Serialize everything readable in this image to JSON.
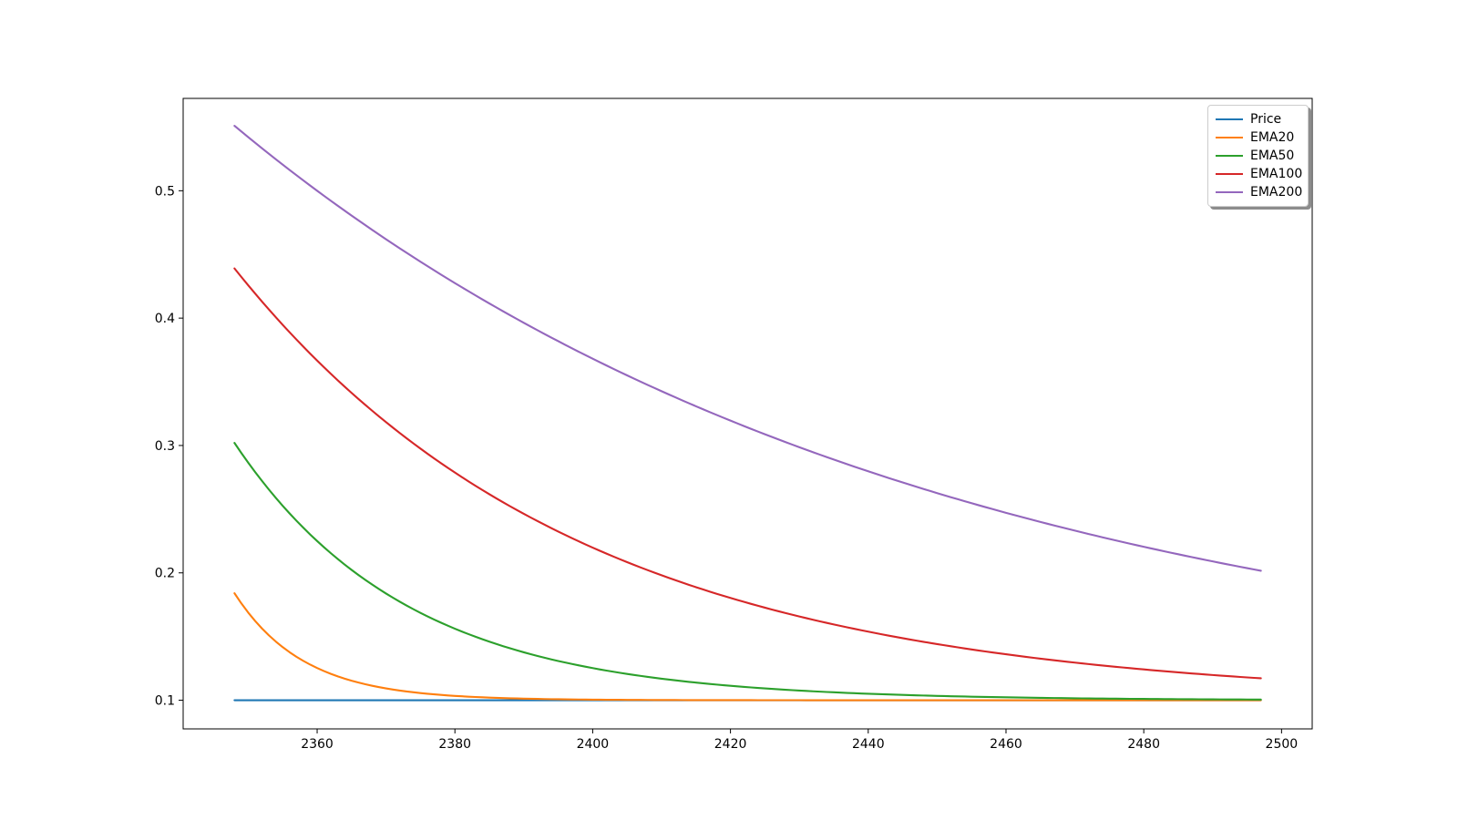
{
  "figure": {
    "background": "#ffffff"
  },
  "chart_data": {
    "type": "line",
    "title": "",
    "xlabel": "",
    "ylabel": "",
    "grid": false,
    "legend_position": "upper right",
    "xlim": [
      2340.55,
      2504.45
    ],
    "ylim": [
      0.0775,
      0.5725
    ],
    "x_ticks": [
      2360,
      2380,
      2400,
      2420,
      2440,
      2460,
      2480,
      2500
    ],
    "x_tick_labels": [
      "2360",
      "2380",
      "2400",
      "2420",
      "2440",
      "2460",
      "2480",
      "2500"
    ],
    "y_ticks": [
      0.1,
      0.2,
      0.3,
      0.4,
      0.5
    ],
    "y_tick_labels": [
      "0.1",
      "0.2",
      "0.3",
      "0.4",
      "0.5"
    ],
    "x_start": 2348,
    "x_end": 2497,
    "x_step": 1,
    "n_points": 150,
    "series": [
      {
        "name": "Price",
        "color": "#1f77b4",
        "model": {
          "base": 0.1,
          "amplitude": 0.0,
          "decay": 1.0
        },
        "samples_x": [
          2348,
          2358,
          2368,
          2378,
          2388,
          2398,
          2408,
          2418,
          2428,
          2438,
          2448,
          2458,
          2468,
          2478,
          2488,
          2497
        ],
        "samples_y": [
          0.1,
          0.1,
          0.1,
          0.1,
          0.1,
          0.1,
          0.1,
          0.1,
          0.1,
          0.1,
          0.1,
          0.1,
          0.1,
          0.1,
          0.1,
          0.1
        ]
      },
      {
        "name": "EMA20",
        "color": "#ff7f0e",
        "model": {
          "base": 0.1,
          "amplitude": 0.084,
          "decay": 0.9047619
        },
        "samples_x": [
          2348,
          2358,
          2368,
          2378,
          2388,
          2398,
          2408,
          2418,
          2428,
          2438,
          2448,
          2458,
          2468,
          2478,
          2488,
          2497
        ],
        "samples_y": [
          0.184,
          0.1309,
          0.1114,
          0.1042,
          0.1015,
          0.1006,
          0.1002,
          0.1001,
          0.1,
          0.1,
          0.1,
          0.1,
          0.1,
          0.1,
          0.1,
          0.1
        ]
      },
      {
        "name": "EMA50",
        "color": "#2ca02c",
        "model": {
          "base": 0.1,
          "amplitude": 0.202,
          "decay": 0.9607843
        },
        "samples_x": [
          2348,
          2358,
          2368,
          2378,
          2388,
          2398,
          2408,
          2418,
          2428,
          2438,
          2448,
          2458,
          2468,
          2478,
          2488,
          2497
        ],
        "samples_y": [
          0.302,
          0.2354,
          0.1908,
          0.1608,
          0.1408,
          0.1273,
          0.1183,
          0.1123,
          0.1082,
          0.1055,
          0.1037,
          0.1025,
          0.1017,
          0.1011,
          0.1007,
          0.1005
        ]
      },
      {
        "name": "EMA100",
        "color": "#d62728",
        "model": {
          "base": 0.1,
          "amplitude": 0.339,
          "decay": 0.980198
        },
        "samples_x": [
          2348,
          2358,
          2368,
          2378,
          2388,
          2398,
          2408,
          2418,
          2428,
          2438,
          2448,
          2458,
          2468,
          2478,
          2488,
          2497
        ],
        "samples_y": [
          0.439,
          0.3776,
          0.3272,
          0.286,
          0.2523,
          0.2247,
          0.2021,
          0.1836,
          0.1684,
          0.156,
          0.1459,
          0.1376,
          0.1308,
          0.1252,
          0.1206,
          0.1172
        ]
      },
      {
        "name": "EMA200",
        "color": "#9467bd",
        "model": {
          "base": 0.1,
          "amplitude": 0.451,
          "decay": 0.9900498
        },
        "samples_x": [
          2348,
          2358,
          2368,
          2378,
          2388,
          2398,
          2408,
          2418,
          2428,
          2438,
          2448,
          2458,
          2468,
          2478,
          2488,
          2497
        ],
        "samples_y": [
          0.551,
          0.5081,
          0.4692,
          0.4341,
          0.4023,
          0.3735,
          0.3475,
          0.324,
          0.3026,
          0.2834,
          0.2659,
          0.2501,
          0.2358,
          0.2229,
          0.2112,
          0.2016
        ]
      }
    ]
  },
  "legend": {
    "entries": [
      {
        "label": "Price",
        "color": "#1f77b4"
      },
      {
        "label": "EMA20",
        "color": "#ff7f0e"
      },
      {
        "label": "EMA50",
        "color": "#2ca02c"
      },
      {
        "label": "EMA100",
        "color": "#d62728"
      },
      {
        "label": "EMA200",
        "color": "#9467bd"
      }
    ]
  }
}
